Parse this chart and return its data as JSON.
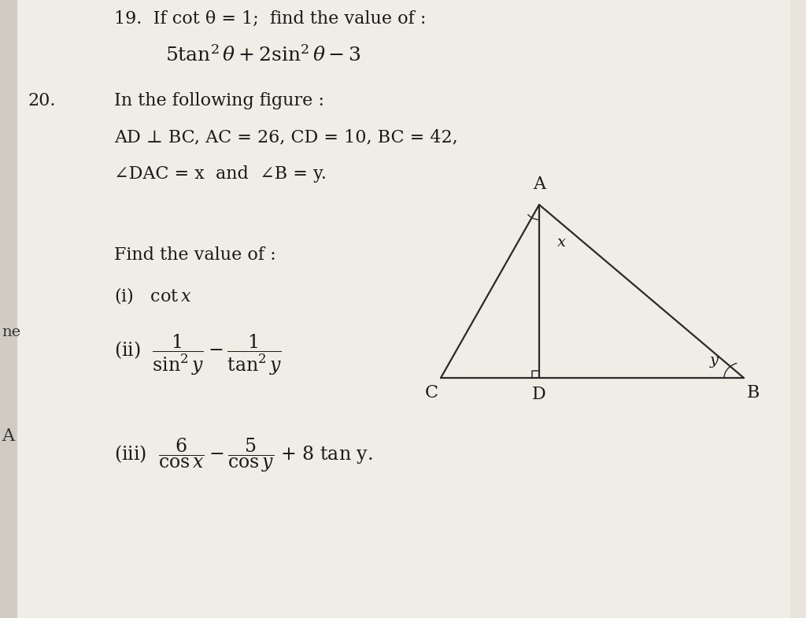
{
  "bg_color": "#e8e4dc",
  "page_color": "#f0ede6",
  "text_color": "#1a1a1a",
  "triangle_color": "#2a2a2a",
  "triangle_lw": 1.6,
  "font_size_main": 16,
  "font_size_small": 14,
  "font_size_large": 18,
  "q19_partial": "19.  If cot θ = 1;  find the value of :",
  "formula_line": "5 tan²θ + 2 sin²θ − 3",
  "q20_num": "20.",
  "q20_text1": "In the following figure :",
  "q20_text2": "AD ⊥ BC, AC = 26, CD = 10, BC = 42,",
  "q20_text3": "∠DAC = x  and  ∠B = y.",
  "find_text": "Find the value of :",
  "part_i": "cot x",
  "margin_ne": "ne",
  "margin_A": "A",
  "label_A": "A",
  "label_C": "C",
  "label_D": "D",
  "label_B": "B",
  "label_x": "x",
  "label_y": "y"
}
